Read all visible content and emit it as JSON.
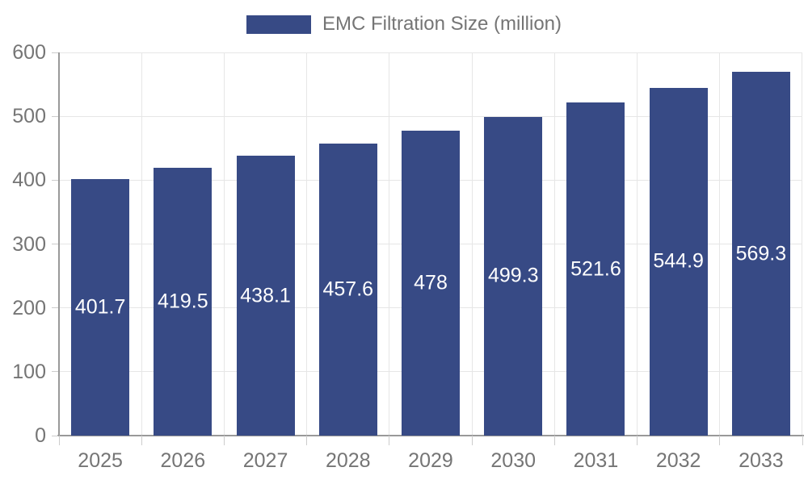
{
  "chart_data": {
    "type": "bar",
    "title": "EMC Filtration Size (million)",
    "categories": [
      "2025",
      "2026",
      "2027",
      "2028",
      "2029",
      "2030",
      "2031",
      "2032",
      "2033"
    ],
    "values": [
      401.7,
      419.5,
      438.1,
      457.6,
      478,
      499.3,
      521.6,
      544.9,
      569.3
    ],
    "value_labels": [
      "401.7",
      "419.5",
      "438.1",
      "457.6",
      "478",
      "499.3",
      "521.6",
      "544.9",
      "569.3"
    ],
    "xlabel": "",
    "ylabel": "",
    "ylim": [
      0,
      600
    ],
    "yticks": [
      0,
      100,
      200,
      300,
      400,
      500,
      600
    ],
    "grid": true,
    "legend_position": "top",
    "colors": {
      "bar": "#374a85",
      "value_label": "#ffffff",
      "axis_text": "#757575",
      "gridline": "#e6e6e6",
      "axis_line": "#999999",
      "tick_mark": "#cccccc",
      "background": "#ffffff"
    }
  }
}
